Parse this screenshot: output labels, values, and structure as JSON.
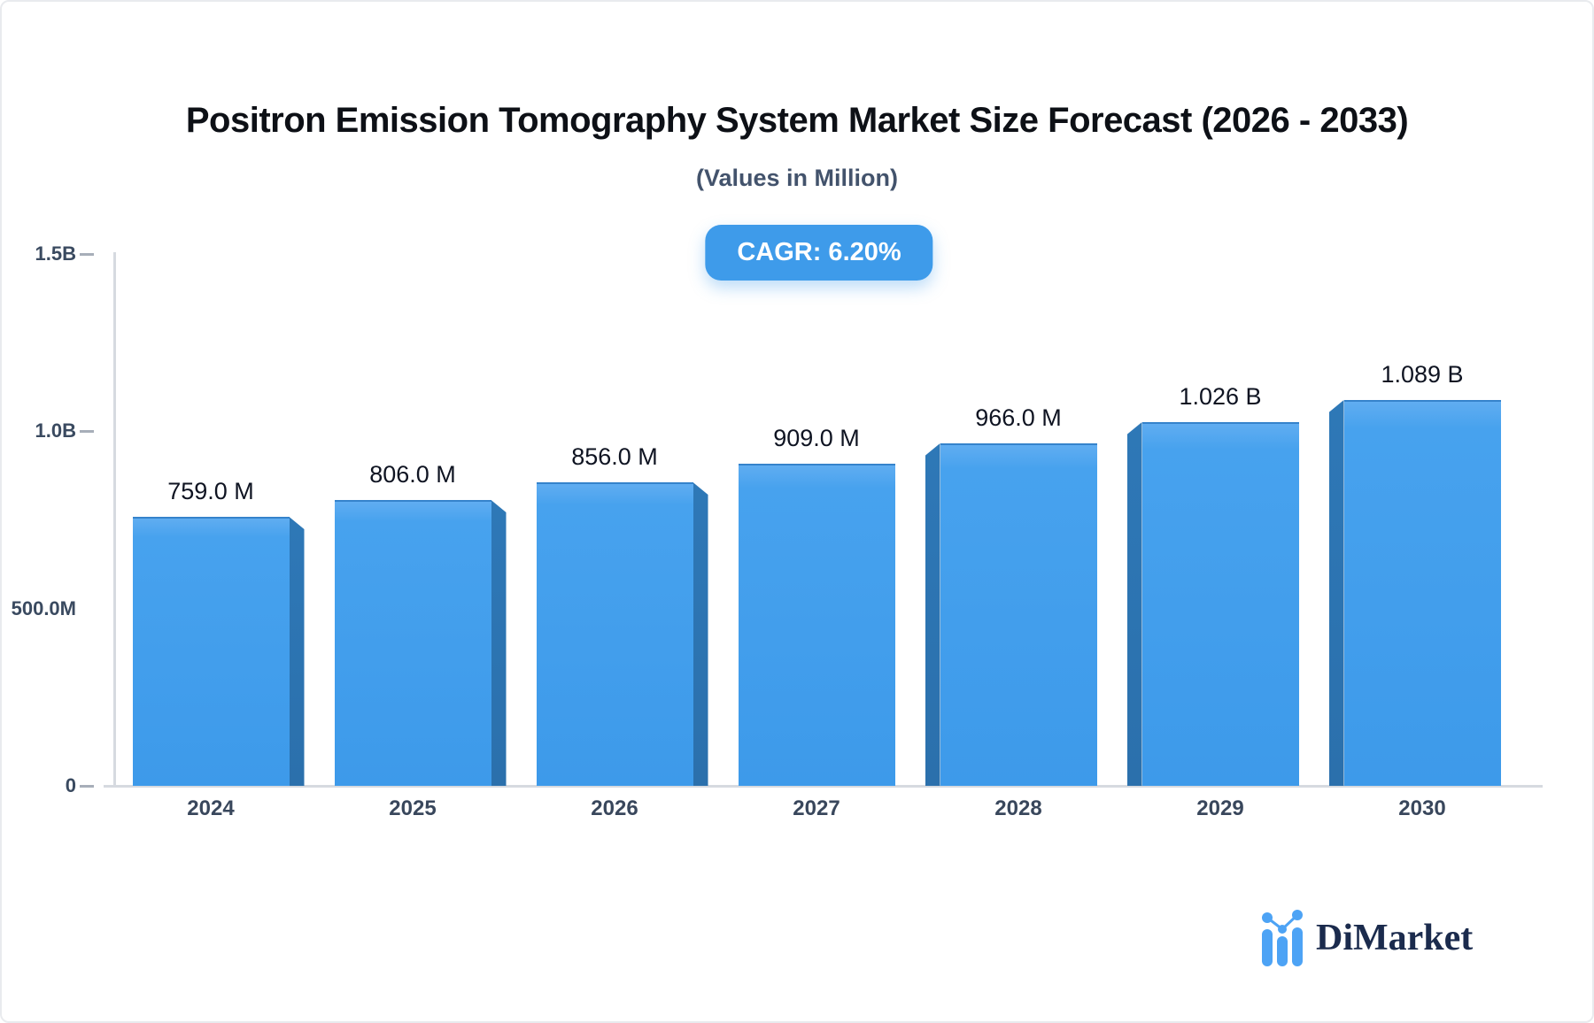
{
  "header": {
    "title": "Positron Emission Tomography System Market Size Forecast (2026 - 2033)",
    "subtitle": "(Values in Million)"
  },
  "cagr_badge": {
    "label": "CAGR: 6.20%",
    "color": "#3e9bea"
  },
  "chart_data": {
    "type": "bar",
    "title": "Positron Emission Tomography System Market Size Forecast (2026 - 2033)",
    "subtitle": "(Values in Million)",
    "categories": [
      "2024",
      "2025",
      "2026",
      "2027",
      "2028",
      "2029",
      "2030"
    ],
    "values_millions": [
      759,
      806,
      856,
      909,
      966,
      1026,
      1089
    ],
    "bar_labels": [
      "759.0 M",
      "806.0 M",
      "856.0 M",
      "909.0 M",
      "966.0 M",
      "1.026 B",
      "1.089 B"
    ],
    "side_face_direction": [
      "right",
      "right",
      "right",
      "none",
      "left",
      "left",
      "left"
    ],
    "y_axis": {
      "range_millions": [
        0,
        1500
      ],
      "ticks": [
        {
          "label": "1.5B",
          "value_millions": 1500,
          "show_dash": true
        },
        {
          "label": "1.0B",
          "value_millions": 1000,
          "show_dash": true
        },
        {
          "label": "500.0M",
          "value_millions": 500,
          "show_dash": false
        },
        {
          "label": "0",
          "value_millions": 0,
          "show_dash": true
        }
      ]
    },
    "grid": "off",
    "legend": "none",
    "colors": {
      "bar_face": "#419eec",
      "bar_face_highlight": "#60adf1",
      "bar_side": "#2e78b7",
      "axis_line": "#d6dae0",
      "data_label": "#0f1422",
      "tick_label": "#3a4a60"
    }
  },
  "logo": {
    "text": "DiMarket",
    "icon": "bar-chart-logo-icon",
    "accent": "#4da3f5",
    "navy": "#1b2b4d"
  }
}
